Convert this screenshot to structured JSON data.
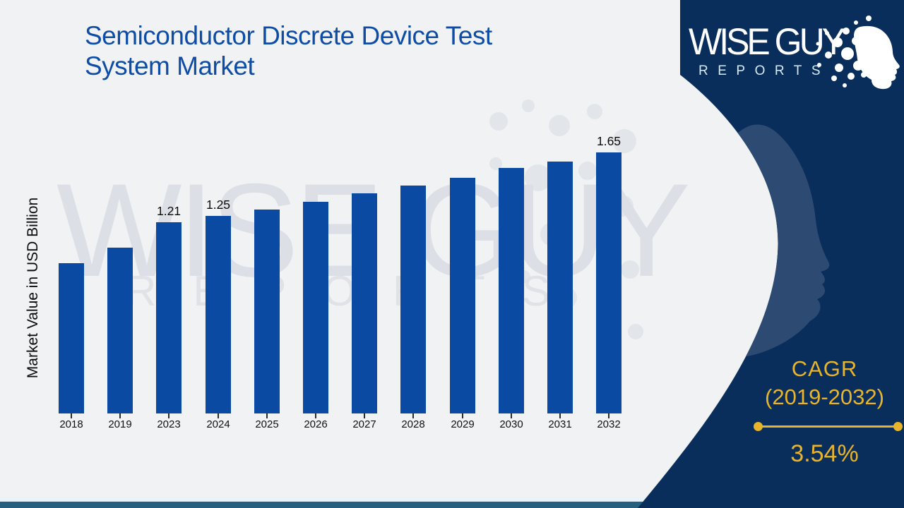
{
  "title": "Semiconductor Discrete Device Test System Market",
  "logo": {
    "line1": "WISE GUY",
    "line2": "REPORTS"
  },
  "watermark": {
    "line1": "WISE GUY",
    "line2": "REPORTS"
  },
  "cagr": {
    "label": "CAGR",
    "period": "(2019-2032)",
    "value": "3.54%"
  },
  "chart_data": {
    "type": "bar",
    "title": "Semiconductor Discrete Device Test System Market",
    "xlabel": "",
    "ylabel": "Market Value in USD Billion",
    "unit": "USD Billion",
    "categories": [
      "2018",
      "2019",
      "2023",
      "2024",
      "2025",
      "2026",
      "2027",
      "2028",
      "2029",
      "2030",
      "2031",
      "2032"
    ],
    "values": [
      0.95,
      1.05,
      1.21,
      1.25,
      1.29,
      1.34,
      1.39,
      1.44,
      1.49,
      1.55,
      1.59,
      1.65
    ],
    "data_labels": [
      "",
      "",
      "1.21",
      "1.25",
      "",
      "",
      "",
      "",
      "",
      "",
      "",
      "1.65"
    ],
    "ylim": [
      0,
      1.8
    ],
    "grid": false,
    "legend": false,
    "bar_color": "#0b4aa2"
  },
  "colors": {
    "background": "#f1f2f4",
    "title_blue": "#0d4da6",
    "bar_blue": "#0b4aa2",
    "navy": "#0a2e5c",
    "face_navy": "#2d4a72",
    "gold": "#e8b42a",
    "teal_strip": "#27607e",
    "pale_strip": "#e8f4fb",
    "watermark_gray": "#dcdfe5"
  }
}
